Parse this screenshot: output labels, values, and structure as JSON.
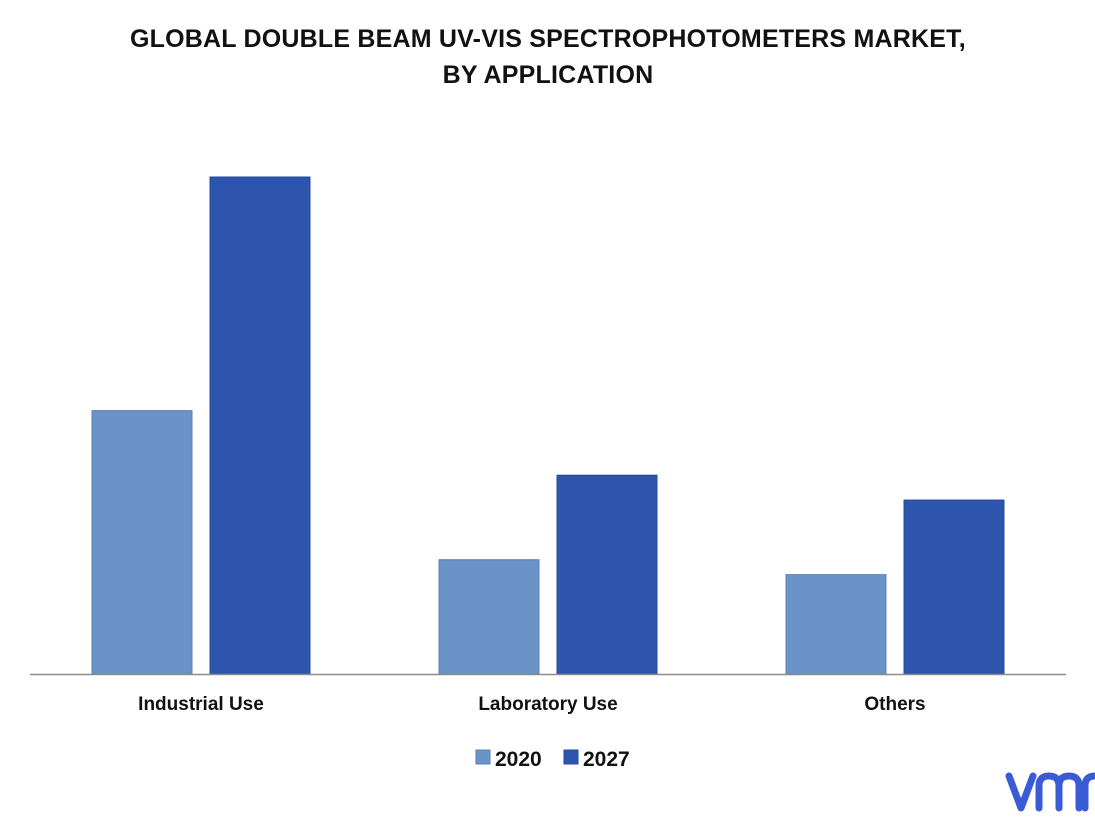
{
  "colors": {
    "series_2020": "#6a93c8",
    "series_2027": "#2e55ad",
    "axis": "#8c8c8c",
    "logo": "#3a5bd6"
  },
  "logo": {
    "name": "vmr-logo",
    "text": "vmr"
  },
  "chart_data": {
    "type": "bar",
    "title": "GLOBAL DOUBLE BEAM UV-VIS SPECTROPHOTOMETERS MARKET, BY APPLICATION",
    "title_lines": [
      "GLOBAL DOUBLE BEAM UV-VIS SPECTROPHOTOMETERS MARKET,",
      "BY APPLICATION"
    ],
    "categories": [
      "Industrial Use",
      "Laboratory Use",
      "Others"
    ],
    "series": [
      {
        "name": "2020",
        "values": [
          53,
          23,
          20
        ]
      },
      {
        "name": "2027",
        "values": [
          100,
          40,
          35
        ]
      }
    ],
    "ylim": [
      0,
      100
    ],
    "xlabel": "",
    "ylabel": "",
    "grid": false,
    "y_axis_visible": false,
    "legend_position": "bottom-center"
  }
}
